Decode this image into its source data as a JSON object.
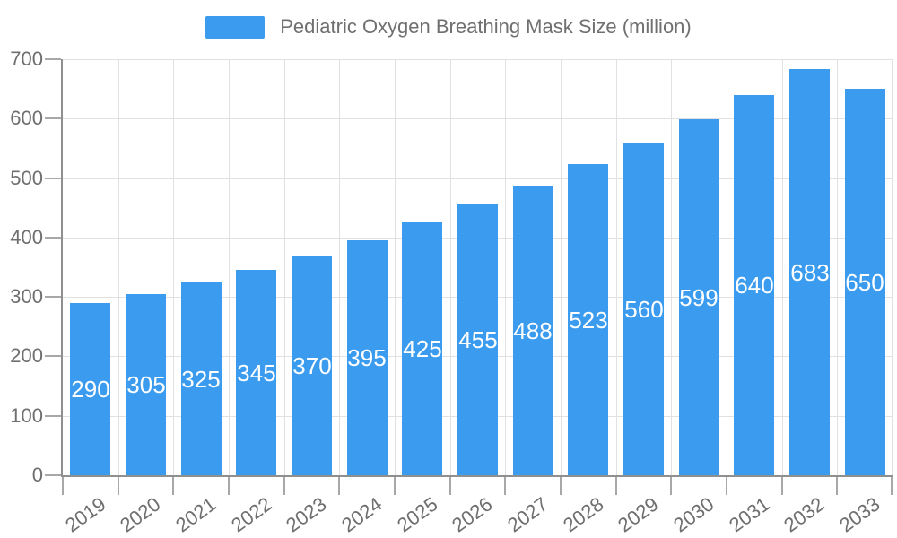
{
  "chart_data": {
    "type": "bar",
    "title": "",
    "series_name": "Pediatric Oxygen Breathing Mask Size (million)",
    "categories": [
      "2019",
      "2020",
      "2021",
      "2022",
      "2023",
      "2024",
      "2025",
      "2026",
      "2027",
      "2028",
      "2029",
      "2030",
      "2031",
      "2032",
      "2033"
    ],
    "values": [
      290,
      305,
      325,
      345,
      370,
      395,
      425,
      455,
      488,
      523,
      560,
      599,
      640,
      683,
      650
    ],
    "xlabel": "",
    "ylabel": "",
    "ylim": [
      0,
      700
    ],
    "ytick_interval": 100,
    "grid": true,
    "legend_position": "top-center",
    "value_label_position": "inside-middle",
    "x_label_rotation_deg": -36,
    "colors": {
      "bar": "#3b9cef",
      "value_label": "#ffffff",
      "axis_text": "#6f6f6f",
      "grid_line": "#e1e1e1",
      "axis_line": "#8f8f8f",
      "tick": "#a8a8a8",
      "background": "#ffffff"
    }
  }
}
